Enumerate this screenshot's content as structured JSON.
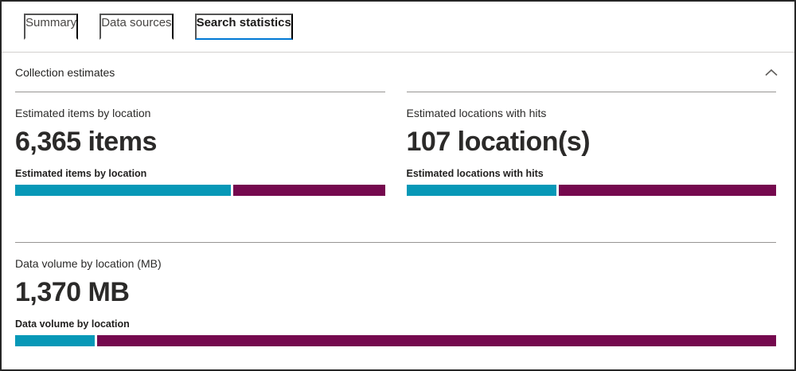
{
  "tabs": [
    {
      "label": "Summary",
      "active": false
    },
    {
      "label": "Data sources",
      "active": false
    },
    {
      "label": "Search statistics",
      "active": true
    }
  ],
  "section": {
    "title": "Collection estimates",
    "collapse_icon": "chevron-up-icon",
    "state": "expanded"
  },
  "stats": {
    "items": {
      "title": "Estimated items by location",
      "value": "6,365 items",
      "chart_label": "Estimated items by location",
      "teal_percent": 58.4
    },
    "locations": {
      "title": "Estimated locations with hits",
      "value": "107 location(s)",
      "chart_label": "Estimated locations with hits",
      "teal_percent": 40.6
    },
    "volume": {
      "title": "Data volume by location (MB)",
      "value": "1,370 MB",
      "chart_label": "Data volume by location",
      "teal_percent": 10.5
    }
  },
  "colors": {
    "teal": "#0798b7",
    "magenta": "#75094e",
    "tab_underline": "#0078d4"
  },
  "chart_data": [
    {
      "type": "bar",
      "title": "Estimated items by location",
      "total_label": "6,365 items",
      "series": [
        {
          "name": "teal-segment",
          "fraction": 0.584,
          "color": "#0798b7"
        },
        {
          "name": "magenta-segment",
          "fraction": 0.416,
          "color": "#75094e"
        }
      ],
      "legend": "none",
      "orientation": "horizontal-stacked"
    },
    {
      "type": "bar",
      "title": "Estimated locations with hits",
      "total_label": "107 location(s)",
      "series": [
        {
          "name": "teal-segment",
          "fraction": 0.406,
          "color": "#0798b7"
        },
        {
          "name": "magenta-segment",
          "fraction": 0.594,
          "color": "#75094e"
        }
      ],
      "legend": "none",
      "orientation": "horizontal-stacked"
    },
    {
      "type": "bar",
      "title": "Data volume by location",
      "total_label": "1,370 MB",
      "series": [
        {
          "name": "teal-segment",
          "fraction": 0.105,
          "color": "#0798b7"
        },
        {
          "name": "magenta-segment",
          "fraction": 0.895,
          "color": "#75094e"
        }
      ],
      "legend": "none",
      "orientation": "horizontal-stacked"
    }
  ]
}
